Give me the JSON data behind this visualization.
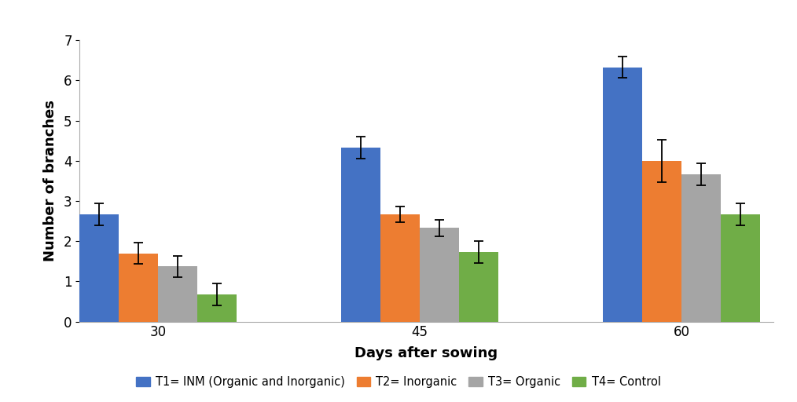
{
  "groups": [
    "30",
    "45",
    "60"
  ],
  "treatments": [
    "T1= INM (Organic and Inorganic)",
    "T2= Inorganic",
    "T3= Organic",
    "T4= Control"
  ],
  "values": [
    [
      2.67,
      1.7,
      1.37,
      0.67
    ],
    [
      4.33,
      2.67,
      2.33,
      1.73
    ],
    [
      6.33,
      4.0,
      3.67,
      2.67
    ]
  ],
  "errors": [
    [
      0.27,
      0.27,
      0.27,
      0.27
    ],
    [
      0.27,
      0.2,
      0.2,
      0.27
    ],
    [
      0.27,
      0.53,
      0.27,
      0.27
    ]
  ],
  "colors": [
    "#4472C4",
    "#ED7D31",
    "#A5A5A5",
    "#70AD47"
  ],
  "xlabel": "Days after sowing",
  "ylabel": "Number of branches",
  "ylim": [
    0,
    7
  ],
  "yticks": [
    0,
    1,
    2,
    3,
    4,
    5,
    6,
    7
  ],
  "bar_width": 0.15,
  "legend_fontsize": 10.5,
  "axis_label_fontsize": 13,
  "tick_fontsize": 12
}
